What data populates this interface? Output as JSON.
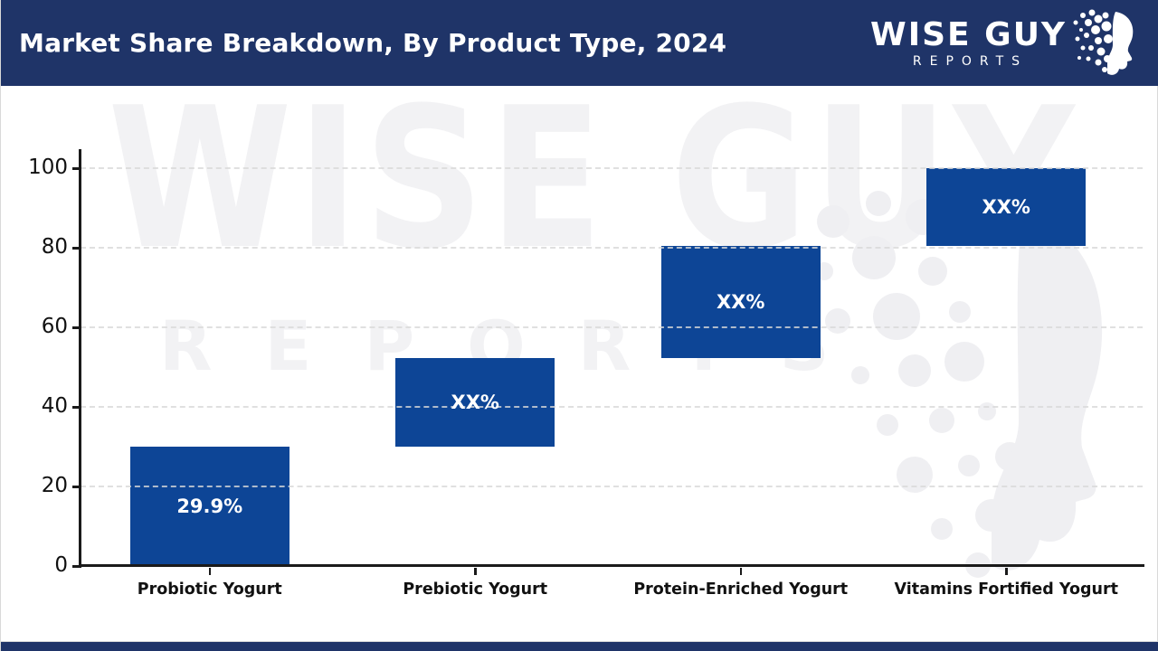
{
  "header": {
    "title": "Market Share Breakdown, By Product Type, 2024",
    "logo": {
      "line1": "WISE GUY",
      "line2": "REPORTS"
    }
  },
  "watermark": {
    "line1": "WISE GUY",
    "line2": "REPORTS"
  },
  "colors": {
    "header_bg": "#1f3468",
    "bar": "#0d4596",
    "bar_label": "#ffffff",
    "grid": "#d8d8d8",
    "axis": "#1a1a1a",
    "watermark": "#f2f2f4"
  },
  "chart_data": {
    "type": "bar",
    "subtype": "waterfall",
    "title": "Market Share Breakdown, By Product Type, 2024",
    "xlabel": "",
    "ylabel": "",
    "categories": [
      "Probiotic Yogurt",
      "Prebiotic Yogurt",
      "Protein-Enriched Yogurt",
      "Vitamins Fortified Yogurt"
    ],
    "segments": [
      {
        "category": "Probiotic Yogurt",
        "start": 0,
        "end": 29.9,
        "label": "29.9%"
      },
      {
        "category": "Prebiotic Yogurt",
        "start": 29.9,
        "end": 52.3,
        "label": "XX%"
      },
      {
        "category": "Protein-Enriched Yogurt",
        "start": 52.3,
        "end": 80.5,
        "label": "XX%"
      },
      {
        "category": "Vitamins Fortified Yogurt",
        "start": 80.5,
        "end": 100,
        "label": "XX%"
      }
    ],
    "yticks": [
      0,
      20,
      40,
      60,
      80,
      100
    ],
    "ylim": [
      0,
      104
    ],
    "grid": "horizontal-dashed",
    "legend": "none",
    "bar_color": "#0d4596"
  }
}
